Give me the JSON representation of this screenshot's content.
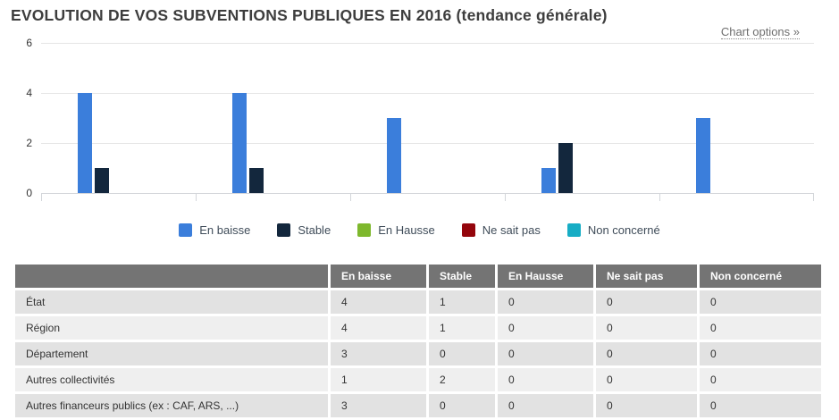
{
  "header": {
    "title": "EVOLUTION DE VOS SUBVENTIONS PUBLIQUES EN 2016 (tendance générale)",
    "chart_options_label": "Chart options »"
  },
  "colors": {
    "en_baisse": "#3b7edb",
    "stable": "#13273d",
    "en_hausse": "#7eb82d",
    "ne_sait_pas": "#94050c",
    "non_concerne": "#17adc5",
    "gridline": "#e5e5e5",
    "axis": "#d3d6da",
    "table_header_bg": "#747474",
    "table_row_odd_bg": "#e2e2e2",
    "table_row_even_bg": "#efefef"
  },
  "chart_data": {
    "type": "bar",
    "title": "EVOLUTION DE VOS SUBVENTIONS PUBLIQUES EN 2016 (tendance générale)",
    "categories": [
      "État",
      "Région",
      "Département",
      "Autres collectivités",
      "Autres financeurs publics (ex : CAF, ARS, ...)"
    ],
    "series": [
      {
        "name": "En baisse",
        "color": "#3b7edb",
        "values": [
          4,
          4,
          3,
          1,
          3
        ]
      },
      {
        "name": "Stable",
        "color": "#13273d",
        "values": [
          1,
          1,
          0,
          2,
          0
        ]
      },
      {
        "name": "En Hausse",
        "color": "#7eb82d",
        "values": [
          0,
          0,
          0,
          0,
          0
        ]
      },
      {
        "name": "Ne sait pas",
        "color": "#94050c",
        "values": [
          0,
          0,
          0,
          0,
          0
        ]
      },
      {
        "name": "Non concerné",
        "color": "#17adc5",
        "values": [
          0,
          0,
          0,
          0,
          0
        ]
      }
    ],
    "ylim": [
      0,
      6
    ],
    "yticks": [
      0,
      2,
      4,
      6
    ],
    "grid": true,
    "legend_position": "bottom",
    "x_tick_labels_visible": false
  },
  "table": {
    "header": [
      "",
      "En baisse",
      "Stable",
      "En Hausse",
      "Ne sait pas",
      "Non concerné"
    ],
    "rows": [
      {
        "label": "État",
        "values": [
          4,
          1,
          0,
          0,
          0
        ]
      },
      {
        "label": "Région",
        "values": [
          4,
          1,
          0,
          0,
          0
        ]
      },
      {
        "label": "Département",
        "values": [
          3,
          0,
          0,
          0,
          0
        ]
      },
      {
        "label": "Autres collectivités",
        "values": [
          1,
          2,
          0,
          0,
          0
        ]
      },
      {
        "label": "Autres financeurs publics (ex : CAF, ARS, ...)",
        "values": [
          3,
          0,
          0,
          0,
          0
        ]
      }
    ]
  }
}
